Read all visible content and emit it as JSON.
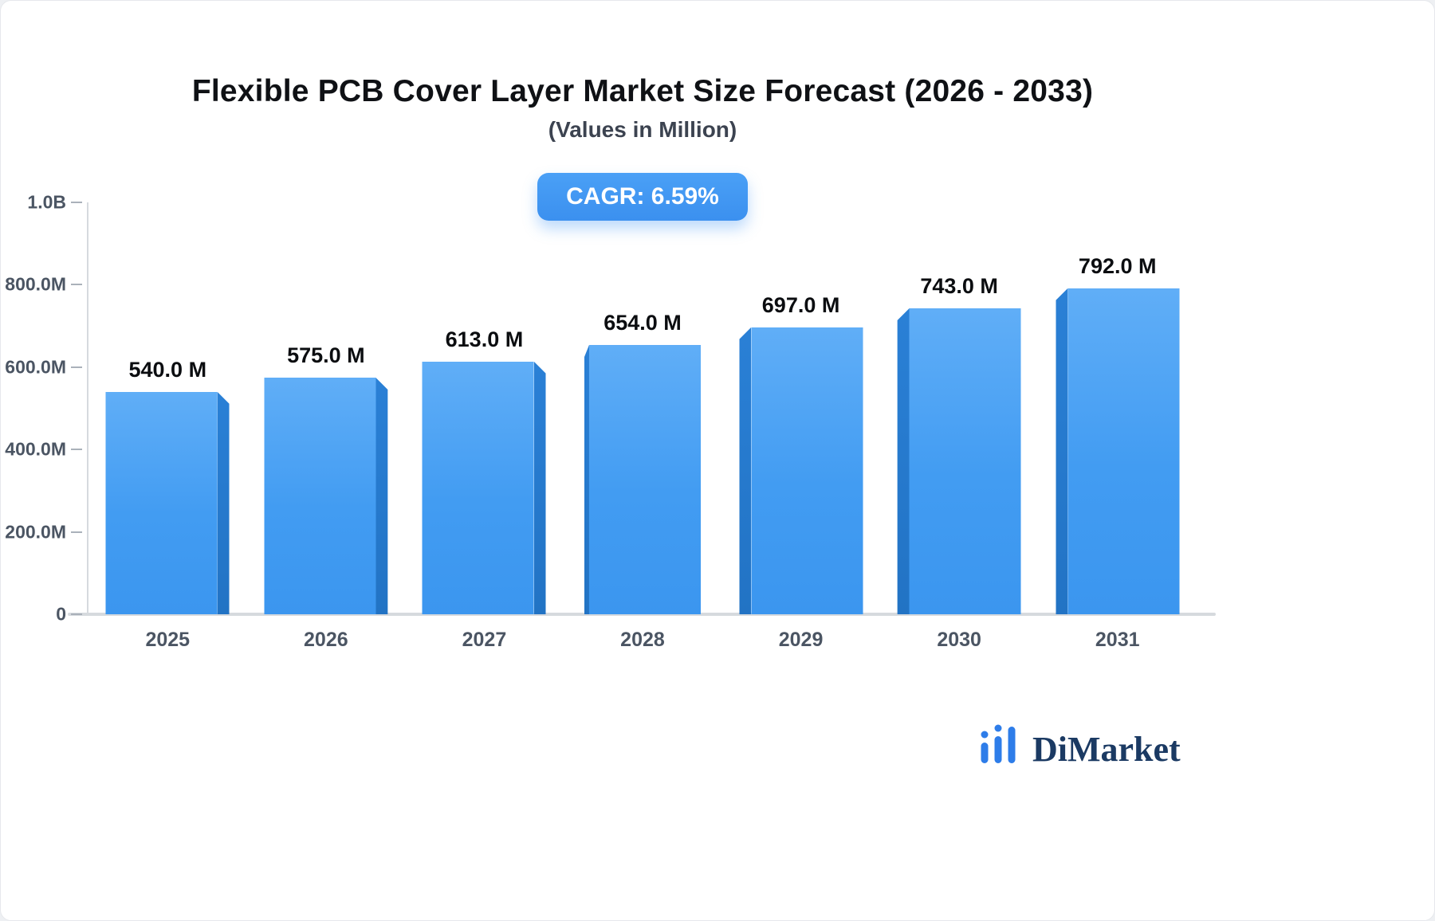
{
  "header": {
    "title": "Flexible PCB Cover Layer Market Size Forecast (2026 - 2033)",
    "subtitle": "(Values in Million)",
    "cagr_label": "CAGR: 6.59%"
  },
  "chart_data": {
    "type": "bar",
    "categories": [
      "2025",
      "2026",
      "2027",
      "2028",
      "2029",
      "2030",
      "2031"
    ],
    "values": [
      540,
      575,
      613,
      654,
      697,
      743,
      792
    ],
    "value_labels": [
      "540.0 M",
      "575.0 M",
      "613.0 M",
      "654.0 M",
      "697.0 M",
      "743.0 M",
      "792.0 M"
    ],
    "title": "Flexible PCB Cover Layer Market Size Forecast (2026 - 2033)",
    "xlabel": "",
    "ylabel": "",
    "ylim": [
      0,
      1000
    ],
    "y_ticks": [
      "1.0B",
      "800.0M",
      "600.0M",
      "400.0M",
      "200.0M",
      "0"
    ],
    "y_tick_values": [
      1000,
      800,
      600,
      400,
      200,
      0
    ],
    "grid": "off",
    "legend": "none",
    "bar_color": "#429cf2",
    "bar_side_color": "#2273c4",
    "style": "pseudo-3d bars, center vanishing point"
  },
  "branding": {
    "logo_text": "DiMarket",
    "logo_icon": "bar-chart-icon",
    "logo_color": "#2e7de9",
    "logo_text_color": "#1b3a63"
  }
}
